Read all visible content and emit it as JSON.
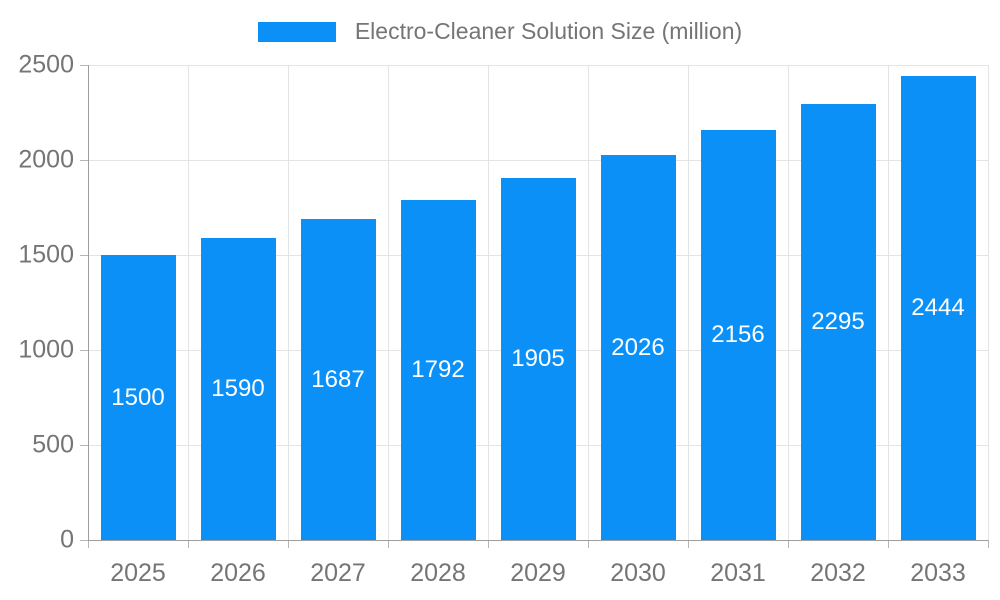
{
  "legend": {
    "label": "Electro-Cleaner Solution Size (million)"
  },
  "colors": {
    "bar": "#0b90f8",
    "bar_label": "#ffffff",
    "axis_text": "#757575",
    "grid": "#e4e4e4",
    "axis_line": "#9e9e9e",
    "tick": "#b5b5b5",
    "background": "#ffffff"
  },
  "chart_data": {
    "type": "bar",
    "title": "Electro-Cleaner Solution Size (million)",
    "categories": [
      "2025",
      "2026",
      "2027",
      "2028",
      "2029",
      "2030",
      "2031",
      "2032",
      "2033"
    ],
    "values": [
      1500,
      1590,
      1687,
      1792,
      1905,
      2026,
      2156,
      2295,
      2444
    ],
    "series": [
      {
        "name": "Electro-Cleaner Solution Size (million)",
        "values": [
          1500,
          1590,
          1687,
          1792,
          1905,
          2026,
          2156,
          2295,
          2444
        ]
      }
    ],
    "xlabel": "",
    "ylabel": "",
    "ylim": [
      0,
      2500
    ],
    "yticks": [
      0,
      500,
      1000,
      1500,
      2000,
      2500
    ],
    "grid": true,
    "legend_position": "top",
    "bar_labels": "inside-center"
  }
}
